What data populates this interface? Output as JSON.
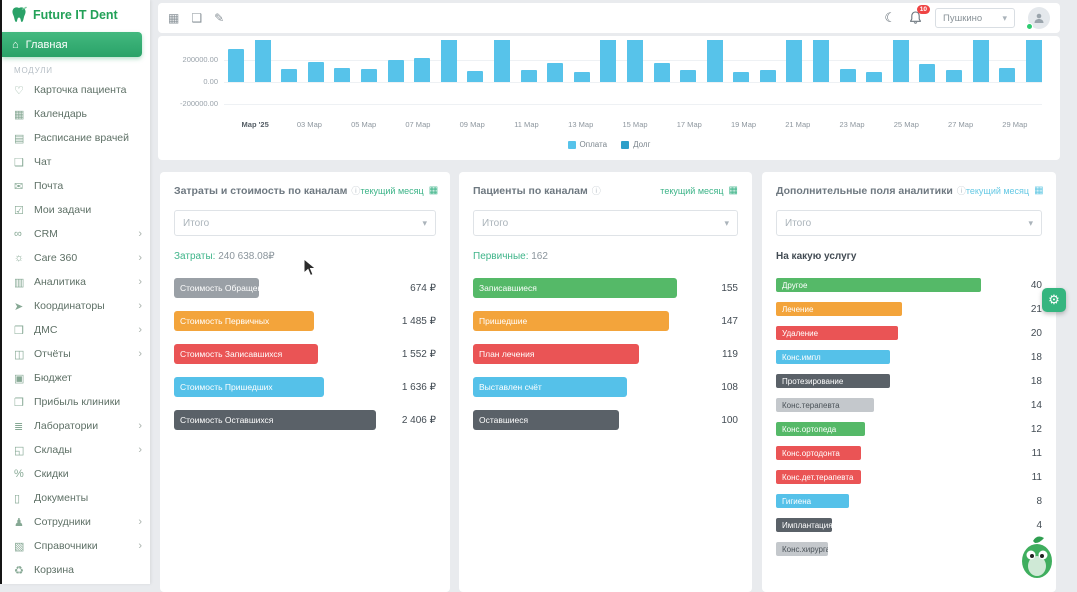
{
  "brand": {
    "name": "Future IT Dent"
  },
  "topbar": {
    "icons": [
      "calendar",
      "chat",
      "compose"
    ],
    "notification_count": "10",
    "branch_select": "Пушкино"
  },
  "sidebar": {
    "home": {
      "label": "Главная",
      "icon": "home"
    },
    "section_label": "МОДУЛИ",
    "items": [
      {
        "label": "Карточка пациента",
        "icon": "heart",
        "chevron": false
      },
      {
        "label": "Календарь",
        "icon": "calendar",
        "chevron": false
      },
      {
        "label": "Расписание врачей",
        "icon": "schedule",
        "chevron": false
      },
      {
        "label": "Чат",
        "icon": "chat",
        "chevron": false
      },
      {
        "label": "Почта",
        "icon": "mail",
        "chevron": false
      },
      {
        "label": "Мои задачи",
        "icon": "tasks",
        "chevron": false
      },
      {
        "label": "CRM",
        "icon": "crm",
        "chevron": true
      },
      {
        "label": "Care 360",
        "icon": "care",
        "chevron": true
      },
      {
        "label": "Аналитика",
        "icon": "analytics",
        "chevron": true
      },
      {
        "label": "Координаторы",
        "icon": "send",
        "chevron": true
      },
      {
        "label": "ДМС",
        "icon": "dms",
        "chevron": true
      },
      {
        "label": "Отчёты",
        "icon": "reports",
        "chevron": true
      },
      {
        "label": "Бюджет",
        "icon": "budget",
        "chevron": false
      },
      {
        "label": "Прибыль клиники",
        "icon": "profit",
        "chevron": false
      },
      {
        "label": "Лаборатории",
        "icon": "labs",
        "chevron": true
      },
      {
        "label": "Склады",
        "icon": "warehouse",
        "chevron": true
      },
      {
        "label": "Скидки",
        "icon": "discount",
        "chevron": false
      },
      {
        "label": "Документы",
        "icon": "docs",
        "chevron": false
      },
      {
        "label": "Сотрудники",
        "icon": "staff",
        "chevron": true
      },
      {
        "label": "Справочники",
        "icon": "directory",
        "chevron": true
      },
      {
        "label": "Корзина",
        "icon": "trash",
        "chevron": false
      }
    ]
  },
  "chart_data": {
    "type": "bar",
    "title": "",
    "bar_color": "#57c3ea",
    "ylim": [
      -200000,
      500000
    ],
    "y_ticks": [
      "200000.00",
      "0.00",
      "-200000.00"
    ],
    "tick_labels": [
      "Мар '25",
      "03 Мар",
      "05 Мар",
      "07 Мар",
      "09 Мар",
      "11 Мар",
      "13 Мар",
      "15 Мар",
      "17 Мар",
      "19 Мар",
      "21 Мар",
      "23 Мар",
      "25 Мар",
      "27 Мар",
      "29 Мар"
    ],
    "values": [
      300000,
      480000,
      120000,
      180000,
      130000,
      120000,
      200000,
      220000,
      480000,
      100000,
      390000,
      110000,
      170000,
      90000,
      430000,
      450000,
      170000,
      110000,
      470000,
      90000,
      110000,
      420000,
      440000,
      120000,
      90000,
      430000,
      160000,
      110000,
      450000,
      130000,
      460000
    ],
    "legend": [
      {
        "label": "Оплата",
        "color": "#57c3ea"
      },
      {
        "label": "Долг",
        "color": "#2d9fc9"
      }
    ]
  },
  "panels": [
    {
      "title": "Затраты и стоимость по каналам",
      "period_label": "текущий месяц",
      "accent": "#3eb489",
      "summary_accent": true,
      "select_value": "Итого",
      "summary_label": "Затраты:",
      "summary_value": "240 638.08₽",
      "bars": [
        {
          "label": "Стоимость Обращений",
          "value": "674 ₽",
          "color": "#9aa0a6"
        },
        {
          "label": "Стоимость Первичных",
          "value": "1 485 ₽",
          "color": "#f3a43b"
        },
        {
          "label": "Стоимость Записавшихся",
          "value": "1 552 ₽",
          "color": "#ea5455"
        },
        {
          "label": "Стоимость Пришедших",
          "value": "1 636 ₽",
          "color": "#55c1e9"
        },
        {
          "label": "Стоимость Оставшихся",
          "value": "2 406 ₽",
          "color": "#5a6168"
        }
      ]
    },
    {
      "title": "Пациенты по каналам",
      "period_label": "текущий месяц",
      "accent": "#3eb489",
      "summary_accent": true,
      "select_value": "Итого",
      "summary_label": "Первичные:",
      "summary_value": "162",
      "bars": [
        {
          "label": "Записавшиеся",
          "value": "155",
          "color": "#55b968"
        },
        {
          "label": "Пришедшие",
          "value": "147",
          "color": "#f3a43b"
        },
        {
          "label": "План лечения",
          "value": "119",
          "color": "#ea5455"
        },
        {
          "label": "Выставлен счёт",
          "value": "108",
          "color": "#55c1e9"
        },
        {
          "label": "Оставшиеся",
          "value": "100",
          "color": "#5a6168"
        }
      ]
    },
    {
      "title": "Дополнительные поля аналитики",
      "period_label": "текущий месяц",
      "accent": "#66c9e4",
      "summary_accent": false,
      "select_value": "Итого",
      "summary_label": "На какую услугу",
      "summary_value": "",
      "bars": [
        {
          "label": "Другое",
          "value": "40",
          "color": "#55b968"
        },
        {
          "label": "Лечение",
          "value": "21",
          "color": "#f3a43b"
        },
        {
          "label": "Удаление",
          "value": "20",
          "color": "#ea5455"
        },
        {
          "label": "Конс.импл",
          "value": "18",
          "color": "#55c1e9"
        },
        {
          "label": "Протезирование",
          "value": "18",
          "color": "#5a6168"
        },
        {
          "label": "Конс.терапевта",
          "value": "14",
          "color": "#c4c8cc",
          "dark_text": true
        },
        {
          "label": "Конс.ортопеда",
          "value": "12",
          "color": "#55b968"
        },
        {
          "label": "Конс.ортодонта",
          "value": "11",
          "color": "#ea5455"
        },
        {
          "label": "Конс.дет.терапевта",
          "value": "11",
          "color": "#ea5455"
        },
        {
          "label": "Гигиена",
          "value": "8",
          "color": "#55c1e9"
        },
        {
          "label": "Имплантация",
          "value": "4",
          "color": "#5a6168"
        },
        {
          "label": "Конс.хирурга",
          "value": "3",
          "color": "#c4c8cc",
          "dark_text": true
        }
      ]
    }
  ]
}
